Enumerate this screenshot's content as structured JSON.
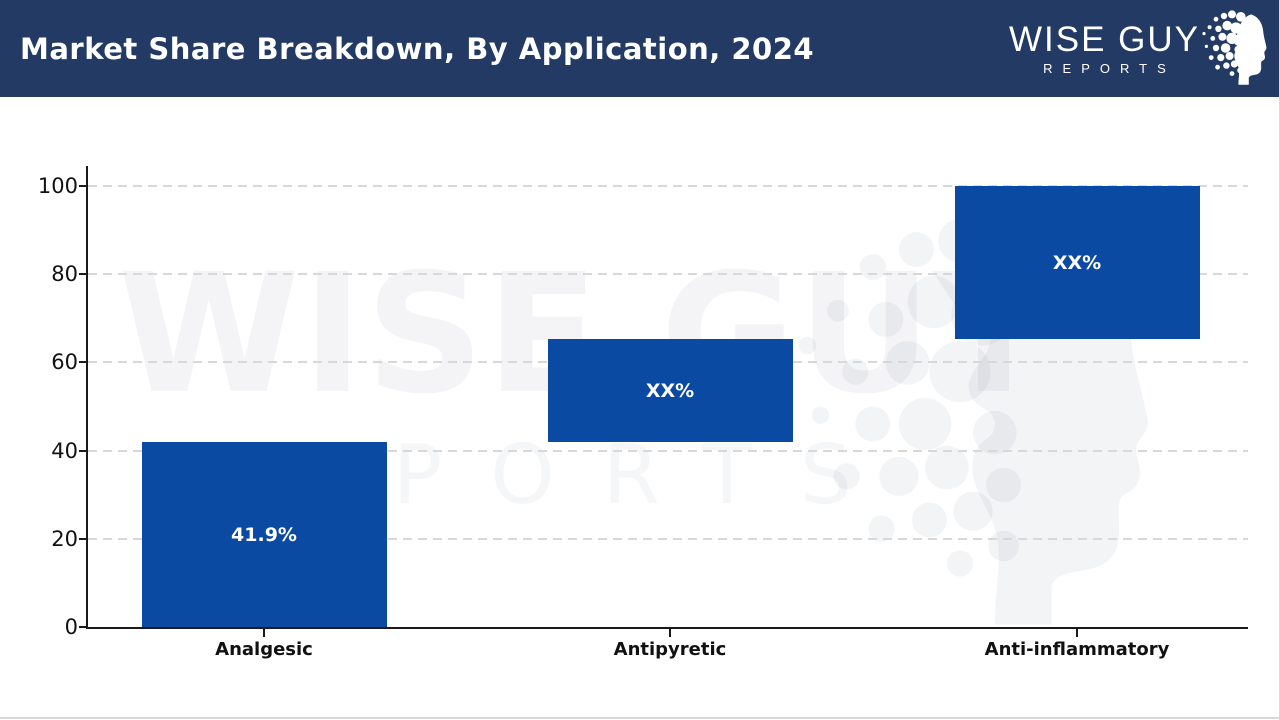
{
  "header": {
    "title": "Market Share Breakdown, By Application, 2024",
    "logo_line1": "WISE GUY",
    "logo_line2": "REPORTS",
    "bg_color": "#233a64"
  },
  "watermark": {
    "line1": "WISE GUY",
    "line2": "REPORTS"
  },
  "chart_data": {
    "type": "bar",
    "subtype": "floating-cumulative-span-bars",
    "title": "Market Share Breakdown, By Application, 2024",
    "categories": [
      "Analgesic",
      "Antipyretic",
      "Anti-inflammatory"
    ],
    "series": [
      {
        "name": "Market share (%)",
        "segments": [
          {
            "category": "Analgesic",
            "start": 0,
            "end": 41.9,
            "value": 41.9,
            "label": "41.9%"
          },
          {
            "category": "Antipyretic",
            "start": 41.9,
            "end": 65.3,
            "value": 23.4,
            "label": "XX%"
          },
          {
            "category": "Anti-inflammatory",
            "start": 65.3,
            "end": 100,
            "value": 34.7,
            "label": "XX%"
          }
        ]
      }
    ],
    "xlabel": "",
    "ylabel": "",
    "ylim": [
      0,
      104
    ],
    "yticks": [
      0,
      20,
      40,
      60,
      80,
      100
    ],
    "grid": {
      "horizontal": true,
      "style": "dashed",
      "color": "#d8d8d8"
    },
    "legend": "none",
    "colors": {
      "bar": "#0b4aa2",
      "bar_label": "#ffffff",
      "axis": "#1a1a1a",
      "tick_label": "#111111",
      "header_bg": "#233a64",
      "watermark": "#eef0f4"
    }
  }
}
